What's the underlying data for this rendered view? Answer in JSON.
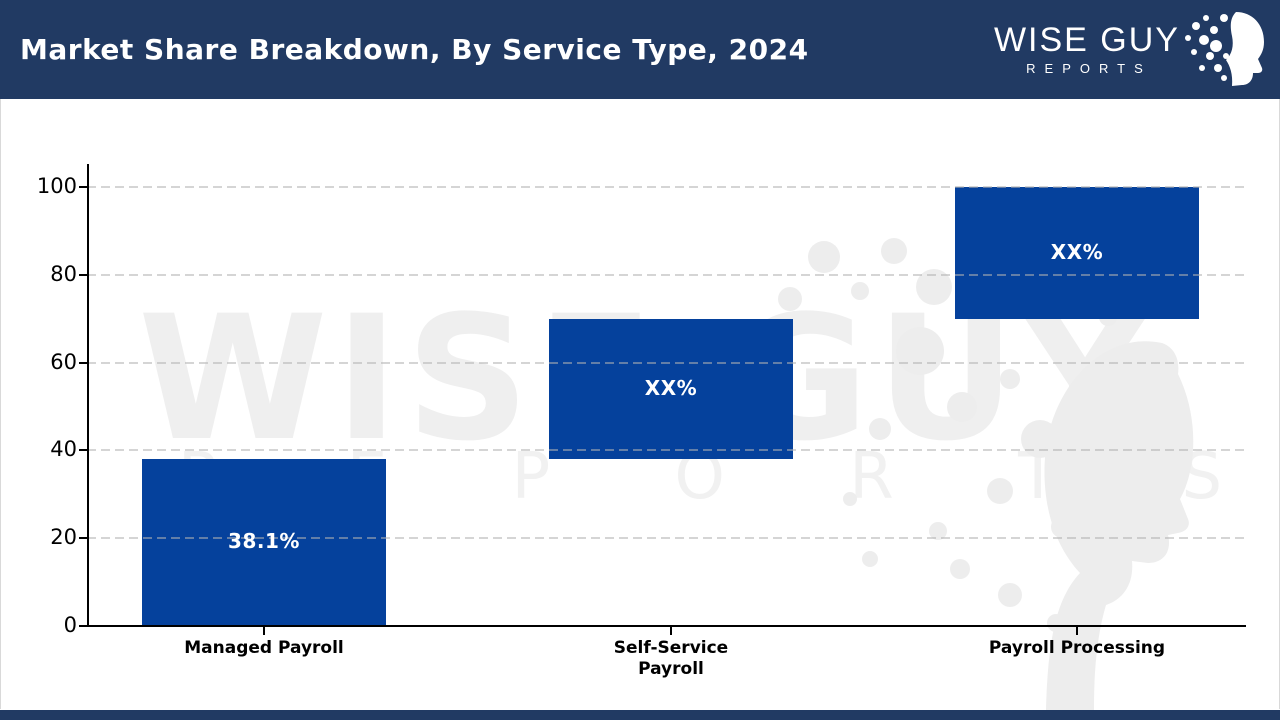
{
  "header": {
    "title": "Market Share Breakdown, By Service Type, 2024",
    "logo": {
      "line1": "WISE GUY",
      "line2": "REPORTS"
    }
  },
  "watermark": {
    "line1": "WISE GUY",
    "line2": "R E P O R T S"
  },
  "colors": {
    "header_bg": "#213A63",
    "bar": "#05419C",
    "grid": "#c9c9c9",
    "watermark": "#ededed"
  },
  "chart_data": {
    "type": "bar",
    "subtype": "waterfall",
    "title": "Market Share Breakdown, By Service Type, 2024",
    "categories": [
      "Managed Payroll",
      "Self-Service\nPayroll",
      "Payroll Processing"
    ],
    "segments": [
      {
        "category": "Managed Payroll",
        "start": 0,
        "end": 38.1,
        "label": "38.1%"
      },
      {
        "category": "Self-Service Payroll",
        "start": 38.1,
        "end": 70,
        "label": "XX%"
      },
      {
        "category": "Payroll Processing",
        "start": 70,
        "end": 100,
        "label": "XX%"
      }
    ],
    "yticks": [
      0,
      20,
      40,
      60,
      80,
      100
    ],
    "ylim": [
      0,
      105
    ],
    "xlabel": "",
    "ylabel": "",
    "grid": "dashed-horizontal",
    "legend": "none"
  }
}
